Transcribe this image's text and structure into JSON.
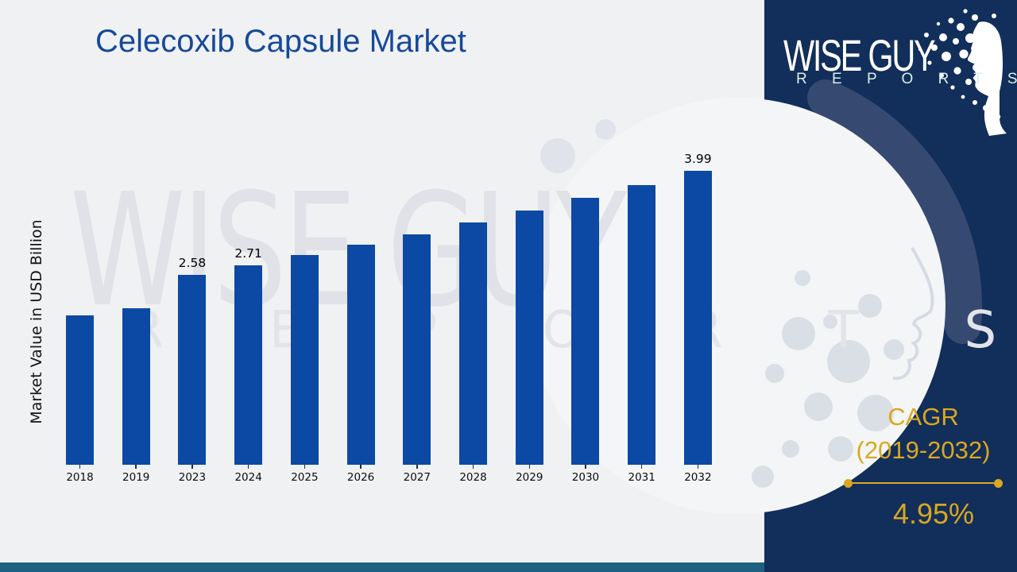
{
  "header": {
    "title": "Celecoxib Capsule Market",
    "title_color": "#17499a"
  },
  "chart_data": {
    "type": "bar",
    "title": "Celecoxib Capsule Market",
    "xlabel": "",
    "ylabel": "Market Value in USD Billion",
    "categories": [
      "2018",
      "2019",
      "2023",
      "2024",
      "2025",
      "2026",
      "2027",
      "2028",
      "2029",
      "2030",
      "2031",
      "2032"
    ],
    "values": [
      2.03,
      2.13,
      2.58,
      2.71,
      2.85,
      2.99,
      3.13,
      3.29,
      3.45,
      3.62,
      3.8,
      3.99
    ],
    "data_labels": {
      "2023": "2.58",
      "2024": "2.71",
      "2032": "3.99"
    },
    "ylim": [
      0,
      4.3
    ],
    "grid": false,
    "legend": null,
    "bar_color": "#0b49a4",
    "unit": "USD Billion"
  },
  "watermark": {
    "line1": "WISE GUY",
    "line2": "R E P O R T S"
  },
  "brand_panel": {
    "logo_line1": "WISE GUY",
    "logo_line2": "R E P O R T S",
    "cagr_label": "CAGR",
    "cagr_range": "(2019-2032)",
    "cagr_value": "4.95%",
    "panel_color": "#122e5a",
    "accent_gold": "#d9a820",
    "teal_strip_color": "#1c6180"
  }
}
